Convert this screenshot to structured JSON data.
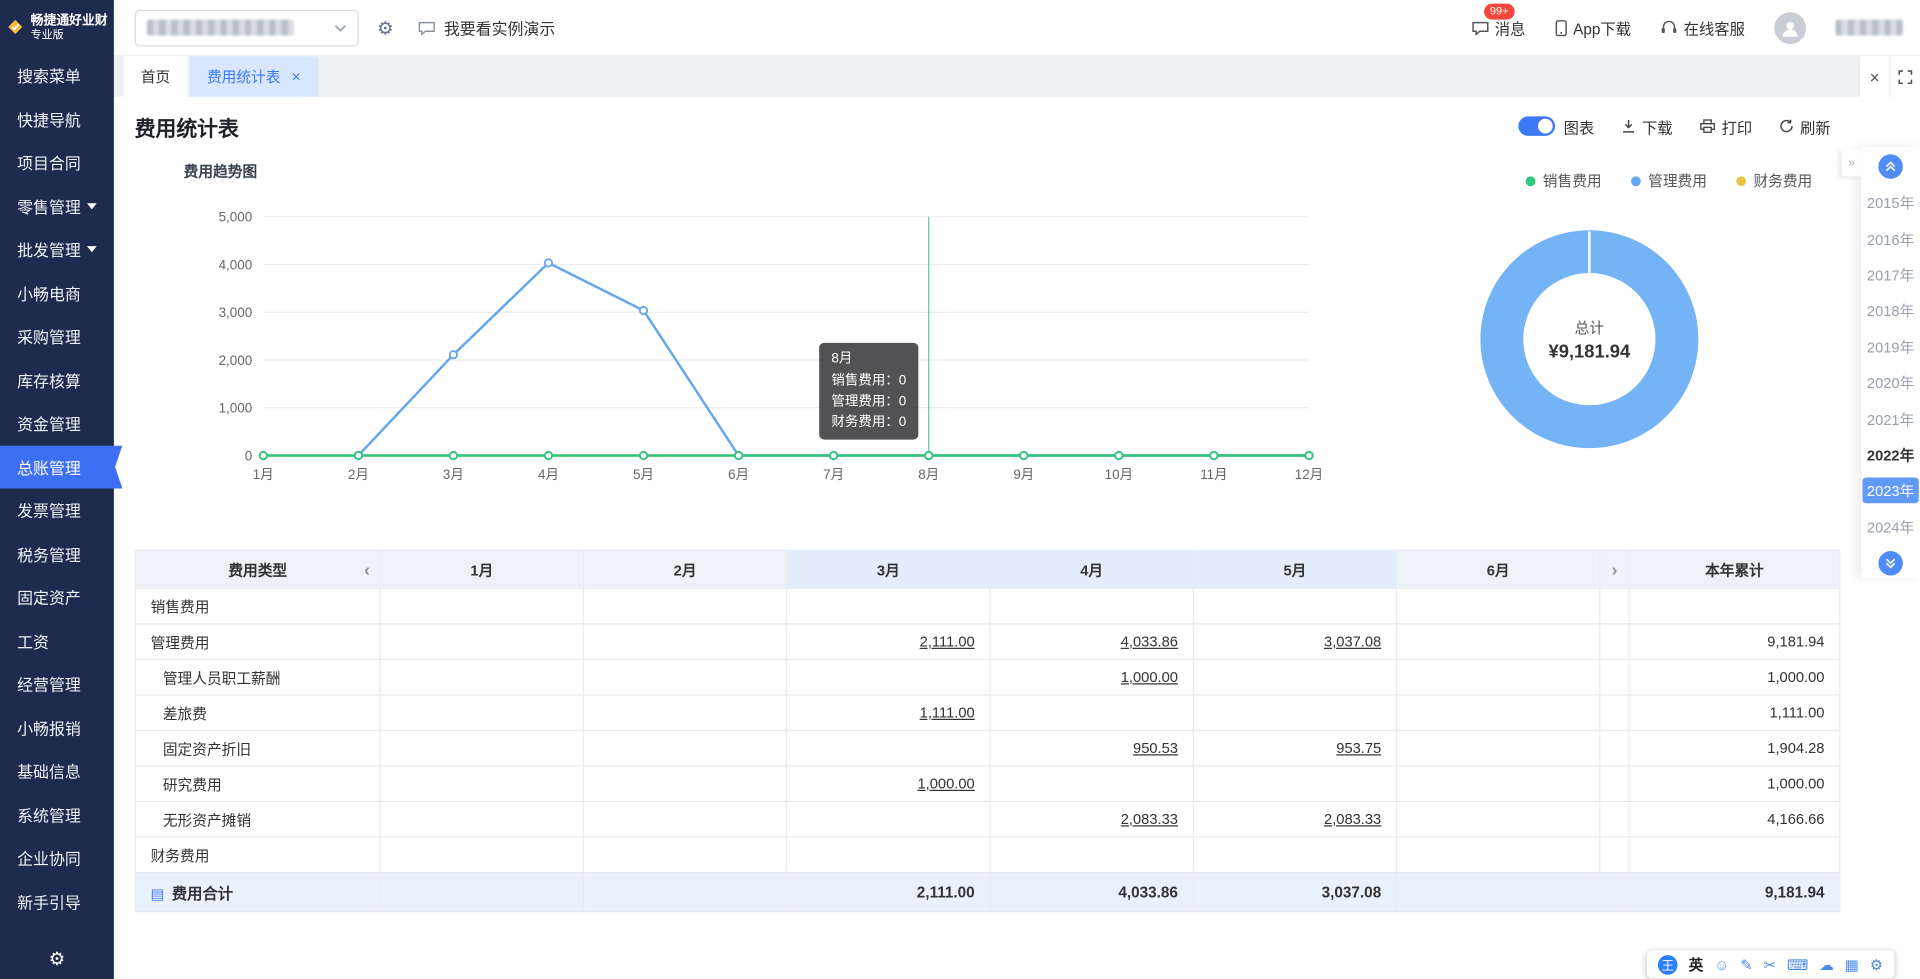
{
  "brand": {
    "name": "畅捷通好业财",
    "edition": "专业版"
  },
  "icons": {
    "gear": "⚙",
    "report": "▤",
    "chevron_left": "‹",
    "chevron_right": "›",
    "collapse": "»",
    "close": "×",
    "smiley": "☺",
    "pen": "✎",
    "scissors": "✂",
    "keyboard": "⌨",
    "cloud": "☁",
    "grid": "▦"
  },
  "sidebar": {
    "items": [
      {
        "label": "搜索菜单"
      },
      {
        "label": "快捷导航"
      },
      {
        "label": "项目合同"
      },
      {
        "label": "零售管理",
        "dropdown": true
      },
      {
        "label": "批发管理",
        "dropdown": true
      },
      {
        "label": "小畅电商"
      },
      {
        "label": "采购管理"
      },
      {
        "label": "库存核算"
      },
      {
        "label": "资金管理"
      },
      {
        "label": "总账管理",
        "active": true
      },
      {
        "label": "发票管理"
      },
      {
        "label": "税务管理"
      },
      {
        "label": "固定资产"
      },
      {
        "label": "工资"
      },
      {
        "label": "经营管理"
      },
      {
        "label": "小畅报销"
      },
      {
        "label": "基础信息"
      },
      {
        "label": "系统管理"
      },
      {
        "label": "企业协同"
      },
      {
        "label": "新手引导"
      }
    ]
  },
  "topbar": {
    "demo_label": "我要看实例演示",
    "messages": {
      "label": "消息",
      "badge": "99+"
    },
    "app_download": "App下载",
    "online_support": "在线客服"
  },
  "tabbar": {
    "tabs": [
      {
        "label": "首页",
        "active": false,
        "closable": false
      },
      {
        "label": "费用统计表",
        "active": true,
        "closable": true
      }
    ]
  },
  "page": {
    "title": "费用统计表",
    "chart_toggle_label": "图表",
    "download_label": "下载",
    "print_label": "打印",
    "refresh_label": "刷新"
  },
  "chart_data": {
    "type": "line",
    "title": "费用趋势图",
    "categories": [
      "1月",
      "2月",
      "3月",
      "4月",
      "5月",
      "6月",
      "7月",
      "8月",
      "9月",
      "10月",
      "11月",
      "12月"
    ],
    "series": [
      {
        "name": "销售费用",
        "color": "#2ec77e",
        "values": [
          0,
          0,
          0,
          0,
          0,
          0,
          0,
          0,
          0,
          0,
          0,
          0
        ]
      },
      {
        "name": "管理费用",
        "color": "#64a7f0",
        "values": [
          null,
          0,
          2111.0,
          4033.86,
          3037.08,
          0,
          0,
          0,
          0,
          0,
          0,
          0
        ]
      },
      {
        "name": "财务费用",
        "color": "#e9c647",
        "values": [
          0,
          0,
          0,
          0,
          0,
          0,
          0,
          0,
          0,
          0,
          0,
          0
        ]
      }
    ],
    "ylim": [
      0,
      5000
    ],
    "yticks": [
      {
        "label": "0",
        "value": 0
      },
      {
        "label": "1,000",
        "value": 1000
      },
      {
        "label": "2,000",
        "value": 2000
      },
      {
        "label": "3,000",
        "value": 3000
      },
      {
        "label": "4,000",
        "value": 4000
      },
      {
        "label": "5,000",
        "value": 5000
      }
    ],
    "legend_position": "top-right",
    "crosshair_index": 7,
    "crosshair_color": "#4ccdb4",
    "tooltip": {
      "title": "8月",
      "rows": [
        {
          "label": "销售费用",
          "value": "0"
        },
        {
          "label": "管理费用",
          "value": "0"
        },
        {
          "label": "财务费用",
          "value": "0"
        }
      ]
    }
  },
  "donut_chart": {
    "type": "pie",
    "center_label": "总计",
    "center_value": "¥9,181.94",
    "color": "#74b3f5",
    "segments": [
      {
        "name": "管理费用",
        "value": 9181.94,
        "color": "#74b3f5"
      }
    ]
  },
  "year_panel": {
    "items": [
      {
        "label": "2015年"
      },
      {
        "label": "2016年"
      },
      {
        "label": "2017年"
      },
      {
        "label": "2018年"
      },
      {
        "label": "2019年"
      },
      {
        "label": "2020年"
      },
      {
        "label": "2021年"
      },
      {
        "label": "2022年",
        "emphasis": true
      },
      {
        "label": "2023年",
        "active": true
      },
      {
        "label": "2024年"
      }
    ]
  },
  "table": {
    "header": {
      "type_label": "费用类型",
      "months": [
        "1月",
        "2月",
        "3月",
        "4月",
        "5月",
        "6月"
      ],
      "highlight_months": [
        "3月",
        "4月",
        "5月"
      ],
      "total_label": "本年累计"
    },
    "rows": [
      {
        "label": "销售费用",
        "indent": false,
        "cells": [
          "",
          "",
          "",
          "",
          "",
          ""
        ],
        "total": ""
      },
      {
        "label": "管理费用",
        "indent": false,
        "cells": [
          "",
          "",
          "2,111.00",
          "4,033.86",
          "3,037.08",
          ""
        ],
        "total": "9,181.94"
      },
      {
        "label": "管理人员职工薪酬",
        "indent": true,
        "cells": [
          "",
          "",
          "",
          "1,000.00",
          "",
          ""
        ],
        "total": "1,000.00"
      },
      {
        "label": "差旅费",
        "indent": true,
        "cells": [
          "",
          "",
          "1,111.00",
          "",
          "",
          ""
        ],
        "total": "1,111.00"
      },
      {
        "label": "固定资产折旧",
        "indent": true,
        "cells": [
          "",
          "",
          "",
          "950.53",
          "953.75",
          ""
        ],
        "total": "1,904.28"
      },
      {
        "label": "研究费用",
        "indent": true,
        "cells": [
          "",
          "",
          "1,000.00",
          "",
          "",
          ""
        ],
        "total": "1,000.00"
      },
      {
        "label": "无形资产摊销",
        "indent": true,
        "cells": [
          "",
          "",
          "",
          "2,083.33",
          "2,083.33",
          ""
        ],
        "total": "4,166.66"
      },
      {
        "label": "财务费用",
        "indent": false,
        "cells": [
          "",
          "",
          "",
          "",
          "",
          ""
        ],
        "total": ""
      }
    ],
    "footer": {
      "label": "费用合计",
      "cells": [
        "",
        "",
        "2,111.00",
        "4,033.86",
        "3,037.08",
        ""
      ],
      "total": "9,181.94"
    }
  },
  "ime": {
    "lang_badge": "王",
    "mode": "英",
    "icons": [
      "smiley",
      "pen",
      "scissors",
      "keyboard",
      "cloud",
      "grid",
      "gear"
    ]
  }
}
